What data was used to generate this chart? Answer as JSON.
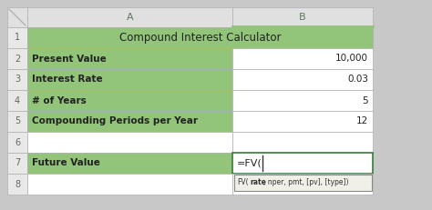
{
  "fig_width": 4.74,
  "fig_height": 2.31,
  "dpi": 100,
  "col_header_A": "A",
  "col_header_B": "B",
  "rows": [
    {
      "row_num": "1",
      "col_a": "Compound Interest Calculator",
      "col_b": "",
      "a_green": true,
      "b_green": true,
      "a_bold": false,
      "b_bold": false,
      "a_align": "center",
      "b_align": "right",
      "span_ab": true
    },
    {
      "row_num": "2",
      "col_a": "Present Value",
      "col_b": "10,000",
      "a_green": true,
      "b_green": false,
      "a_bold": true,
      "b_bold": false,
      "a_align": "left",
      "b_align": "right"
    },
    {
      "row_num": "3",
      "col_a": "Interest Rate",
      "col_b": "0.03",
      "a_green": true,
      "b_green": false,
      "a_bold": true,
      "b_bold": false,
      "a_align": "left",
      "b_align": "right"
    },
    {
      "row_num": "4",
      "col_a": "# of Years",
      "col_b": "5",
      "a_green": true,
      "b_green": false,
      "a_bold": true,
      "b_bold": false,
      "a_align": "left",
      "b_align": "right"
    },
    {
      "row_num": "5",
      "col_a": "Compounding Periods per Year",
      "col_b": "12",
      "a_green": true,
      "b_green": false,
      "a_bold": true,
      "b_bold": false,
      "a_align": "left",
      "b_align": "right"
    },
    {
      "row_num": "6",
      "col_a": "",
      "col_b": "",
      "a_green": false,
      "b_green": false,
      "a_bold": false,
      "b_bold": false,
      "a_align": "left",
      "b_align": "right"
    },
    {
      "row_num": "7",
      "col_a": "Future Value",
      "col_b": "=FV(",
      "a_green": true,
      "b_green": false,
      "a_bold": true,
      "b_bold": false,
      "a_align": "left",
      "b_align": "left"
    },
    {
      "row_num": "8",
      "col_a": "",
      "col_b": "",
      "a_green": false,
      "b_green": false,
      "a_bold": false,
      "b_bold": false,
      "a_align": "left",
      "b_align": "left"
    }
  ],
  "green_color": "#92C47A",
  "white_color": "#FFFFFF",
  "border_color": "#B0B0B0",
  "header_bg": "#E0E0E0",
  "header_text_color": "#5A7A5A",
  "row_num_bg": "#E8E8E8",
  "fig_bg": "#C8C8C8",
  "tooltip_border": "#888888",
  "tooltip_bg": "#F0F0E8",
  "fv_formula_text": "=FV(",
  "tooltip_prefix": "FV(",
  "tooltip_bold": "rate",
  "tooltip_suffix": ", nper, pmt, [pv], [type])"
}
